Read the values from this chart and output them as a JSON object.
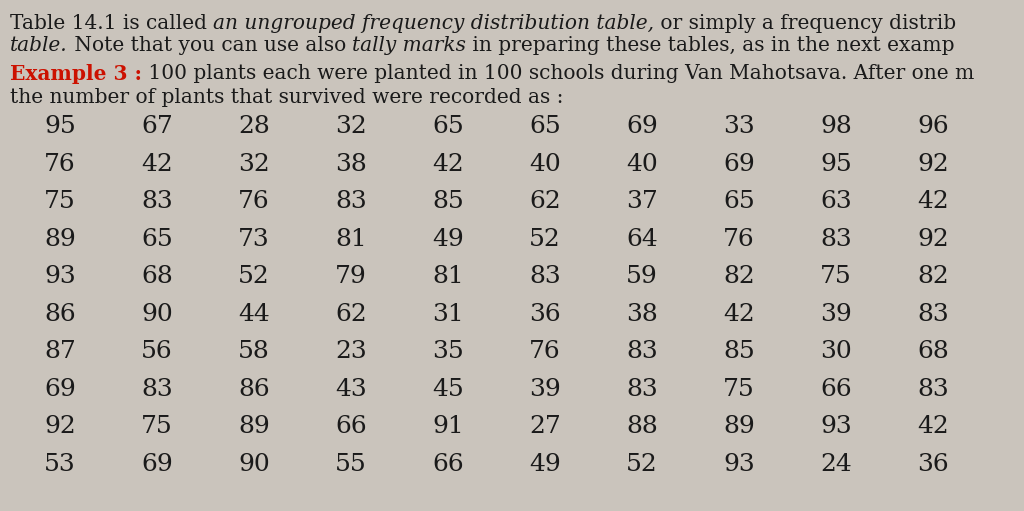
{
  "header_normal1": "Table 14.1 is called ",
  "header_italic1": "an ungrouped frequency distribution table,",
  "header_normal1b": " or simply a frequency distrib",
  "header_italic2": "table.",
  "header_normal2": " Note that you can use also ",
  "header_italic3": "tally marks",
  "header_normal2b": " in preparing these tables, as in the next examp",
  "example_label": "Example 3 :",
  "example_text": "100 plants each were planted in 100 schools during Van Mahotsava. After one m",
  "example_text2": "the number of plants that survived were recorded as :",
  "data": [
    [
      95,
      67,
      28,
      32,
      65,
      65,
      69,
      33,
      98,
      96
    ],
    [
      76,
      42,
      32,
      38,
      42,
      40,
      40,
      69,
      95,
      92
    ],
    [
      75,
      83,
      76,
      83,
      85,
      62,
      37,
      65,
      63,
      42
    ],
    [
      89,
      65,
      73,
      81,
      49,
      52,
      64,
      76,
      83,
      92
    ],
    [
      93,
      68,
      52,
      79,
      81,
      83,
      59,
      82,
      75,
      82
    ],
    [
      86,
      90,
      44,
      62,
      31,
      36,
      38,
      42,
      39,
      83
    ],
    [
      87,
      56,
      58,
      23,
      35,
      76,
      83,
      85,
      30,
      68
    ],
    [
      69,
      83,
      86,
      43,
      45,
      39,
      83,
      75,
      66,
      83
    ],
    [
      92,
      75,
      89,
      66,
      91,
      27,
      88,
      89,
      93,
      42
    ],
    [
      53,
      69,
      90,
      55,
      66,
      49,
      52,
      93,
      24,
      36
    ]
  ],
  "background_color": "#cac4bc",
  "text_color": "#1a1a1a",
  "example_color": "#cc1100",
  "header_fontsize": 14.5,
  "example_fontsize": 14.5,
  "data_fontsize": 18
}
